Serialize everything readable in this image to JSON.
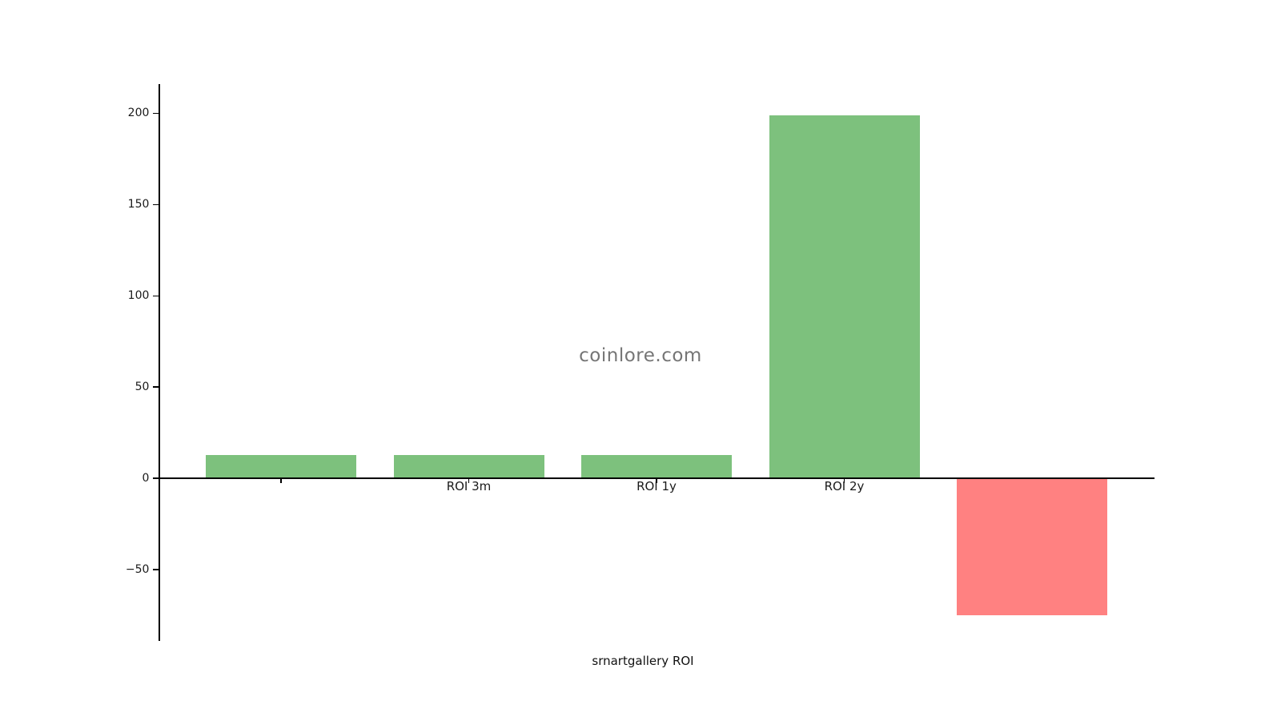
{
  "page": {
    "background": "#ffffff"
  },
  "chart_data": {
    "type": "bar",
    "title": "srnartgallery ROI",
    "title_position": "bottom",
    "watermark": "coinlore.com",
    "xlabel": "",
    "ylabel": "",
    "categories": [
      "",
      "ROI 3m",
      "ROI 1y",
      "ROI 2y",
      ""
    ],
    "values": [
      13,
      13,
      13,
      199,
      -75
    ],
    "bar_colors": [
      "#7DC17D",
      "#7DC17D",
      "#7DC17D",
      "#7DC17D",
      "#FF8181"
    ],
    "positive_color": "#7DC17D",
    "negative_color": "#FF8181",
    "ylim": [
      -89,
      216
    ],
    "yticks": [
      {
        "value": -50,
        "label": "−50"
      },
      {
        "value": 0,
        "label": "0"
      },
      {
        "value": 50,
        "label": "50"
      },
      {
        "value": 100,
        "label": "100"
      },
      {
        "value": 150,
        "label": "150"
      },
      {
        "value": 200,
        "label": "200"
      }
    ],
    "grid": false,
    "legend": false,
    "colors": {
      "axis": "#000000",
      "tick_text": "#1a1a1a",
      "watermark_text": "#757575",
      "title_text": "#111111"
    }
  }
}
